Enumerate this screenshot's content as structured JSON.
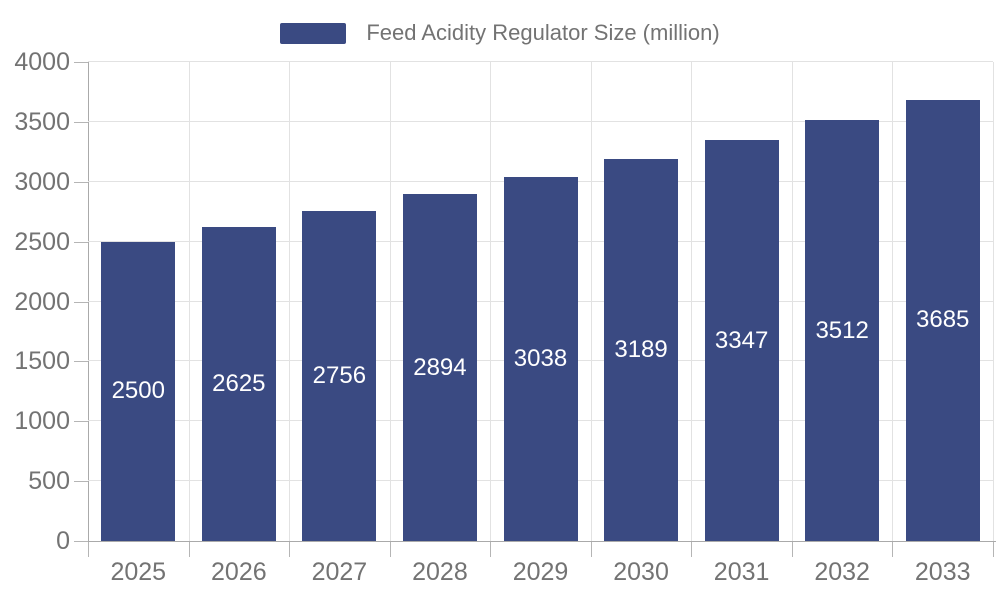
{
  "legend": {
    "label": "Feed Acidity Regulator Size (million)",
    "swatch_color": "#3A4A82"
  },
  "chart_data": {
    "type": "bar",
    "title": "Feed Acidity Regulator Size (million)",
    "categories": [
      "2025",
      "2026",
      "2027",
      "2028",
      "2029",
      "2030",
      "2031",
      "2032",
      "2033"
    ],
    "values": [
      2500,
      2625,
      2756,
      2894,
      3038,
      3189,
      3347,
      3512,
      3685
    ],
    "xlabel": "",
    "ylabel": "",
    "ylim": [
      0,
      4000
    ],
    "ytick_step": 500,
    "grid": true,
    "legend_position": "top-center",
    "bar_color": "#3A4A82",
    "value_label_color": "#ffffff",
    "axis_text_color": "#737373",
    "grid_color": "#E2E2E2",
    "axis_line_color": "#AAAAAA",
    "tick_color": "#B5B5B5"
  }
}
